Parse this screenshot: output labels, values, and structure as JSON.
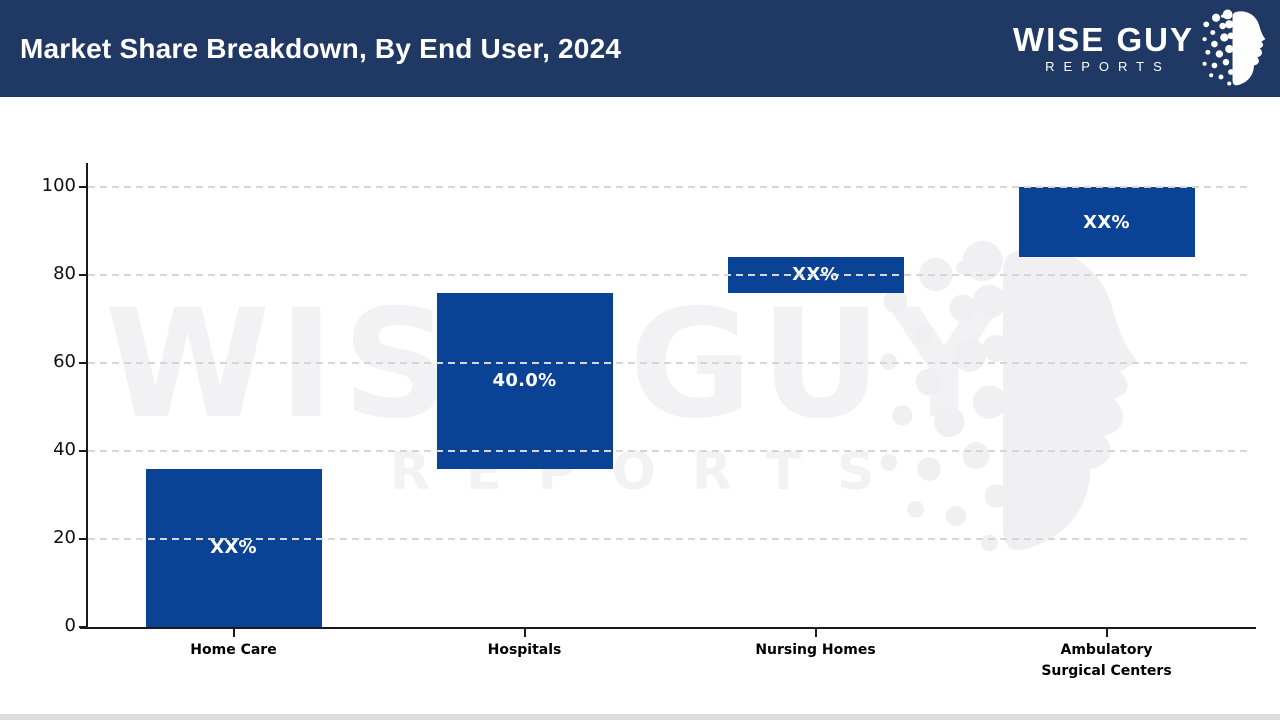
{
  "header": {
    "title": "Market Share Breakdown, By End User, 2024",
    "logo": {
      "brand": "WISE GUY",
      "sub": "REPORTS"
    }
  },
  "watermark": {
    "brand": "WISE GUY",
    "sub": "REPORTS"
  },
  "chart_data": {
    "type": "bar",
    "variant": "waterfall",
    "title": "Market Share Breakdown, By End User, 2024",
    "categories": [
      "Home Care",
      "Hospitals",
      "Nursing Homes",
      "Ambulatory\nSurgical Centers"
    ],
    "segments": [
      {
        "category": "Home Care",
        "start": 0,
        "end": 36,
        "label": "XX%"
      },
      {
        "category": "Hospitals",
        "start": 36,
        "end": 76,
        "label": "40.0%"
      },
      {
        "category": "Nursing Homes",
        "start": 76,
        "end": 84,
        "label": "XX%"
      },
      {
        "category": "Ambulatory Surgical Centers",
        "start": 84,
        "end": 100,
        "label": "XX%"
      }
    ],
    "values_pct": [
      36,
      40,
      8,
      16
    ],
    "xlabel": "",
    "ylabel": "",
    "ylim": [
      0,
      100
    ],
    "yticks": [
      0,
      20,
      40,
      60,
      80,
      100
    ],
    "grid": "horizontal-dashed-over-bars",
    "legend": "none",
    "colors": {
      "bar": "#0A4296",
      "bar_label": "#FFFFFF",
      "grid": "#D6D6D6",
      "axis": "#1A1A1A",
      "header_bg": "#1F3864",
      "footer_strip": "#DCDCDC",
      "watermark": "#F2F2F4"
    }
  }
}
